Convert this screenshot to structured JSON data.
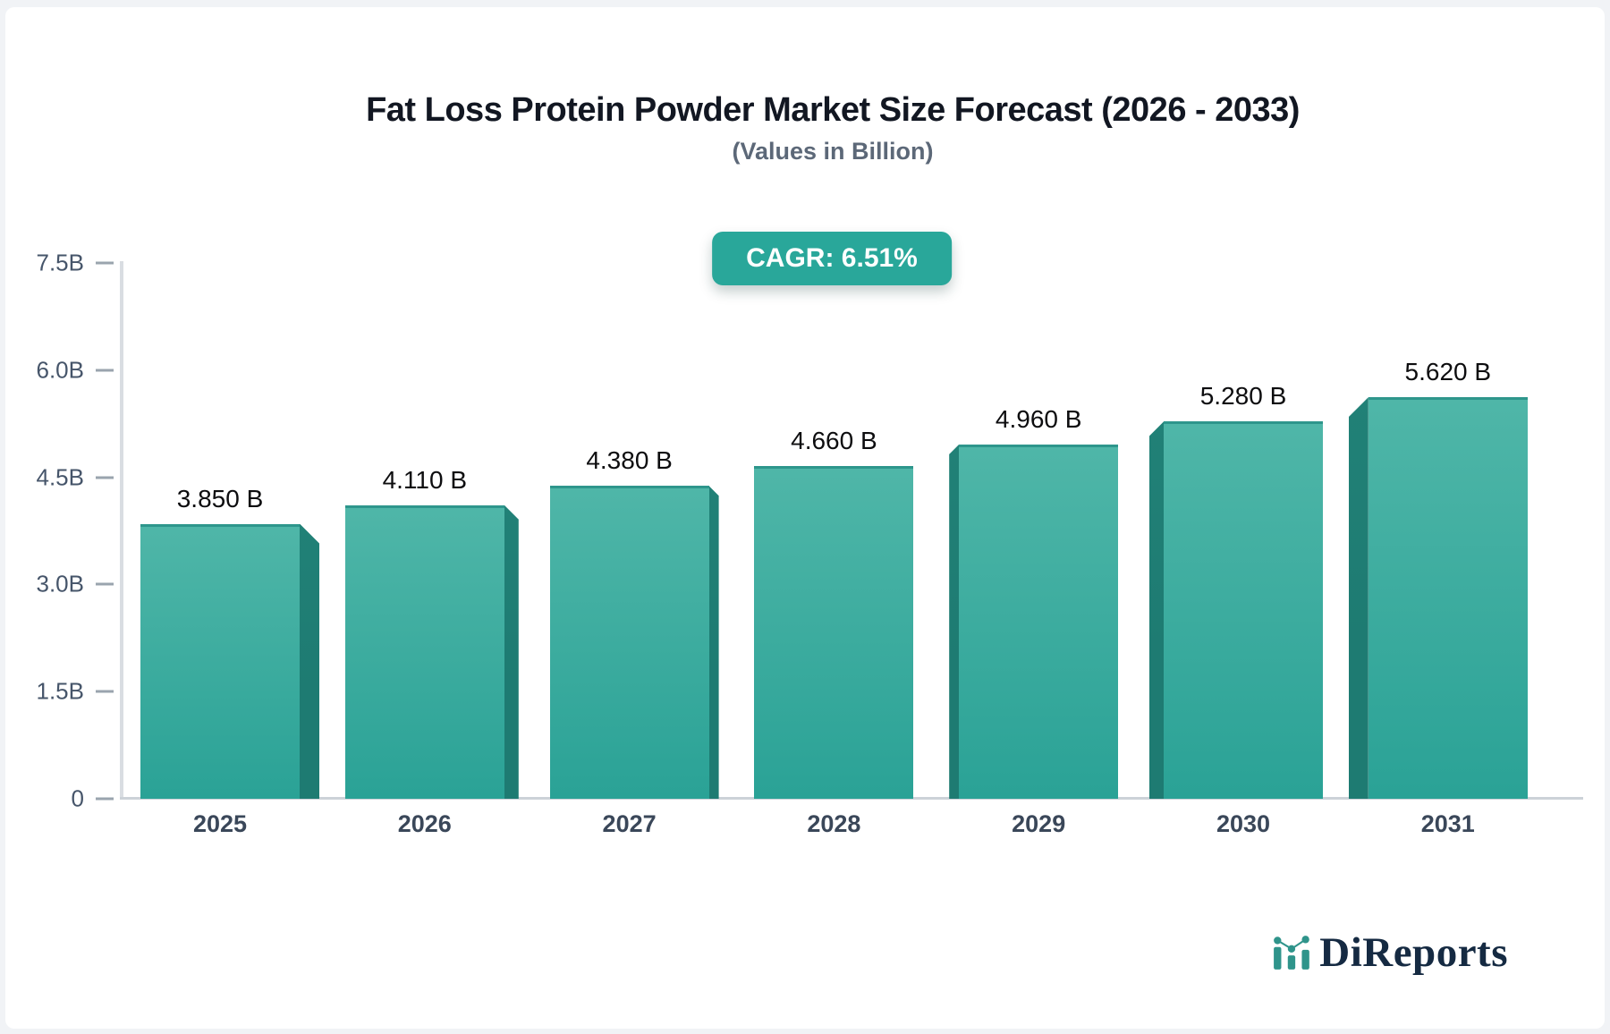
{
  "header": {
    "title": "Fat Loss Protein Powder Market Size Forecast (2026 - 2033)",
    "subtitle": "(Values in Billion)",
    "cagr_badge": "CAGR: 6.51%"
  },
  "chart_data": {
    "type": "bar",
    "title": "Fat Loss Protein Powder Market Size Forecast (2026 - 2033)",
    "subtitle": "(Values in Billion)",
    "cagr": "6.51%",
    "unit": "Billion",
    "categories": [
      "2025",
      "2026",
      "2027",
      "2028",
      "2029",
      "2030",
      "2031"
    ],
    "values": [
      3.85,
      4.11,
      4.38,
      4.66,
      4.96,
      5.28,
      5.62
    ],
    "bar_labels": [
      "3.850 B",
      "4.110 B",
      "4.380 B",
      "4.660 B",
      "4.960 B",
      "5.280 B",
      "5.620 B"
    ],
    "ylim": [
      0,
      7.5
    ],
    "y_ticks": [
      {
        "label": "7.5B",
        "value": 7.5
      },
      {
        "label": "6.0B",
        "value": 6.0
      },
      {
        "label": "4.5B",
        "value": 4.5
      },
      {
        "label": "3.0B",
        "value": 3.0
      },
      {
        "label": "1.5B",
        "value": 1.5
      },
      {
        "label": "0",
        "value": 0
      }
    ],
    "grid": false,
    "legend": false,
    "bar_style": "pseudo-3d",
    "bar_color": "#2fa79a"
  },
  "colors": {
    "bar_top": "#4fb6a8",
    "bar_bottom": "#2aa296",
    "bar_side": "#1e7b72",
    "bar_edge": "#2e968c",
    "badge_bg": "#29a79a",
    "title": "#121722",
    "subtitle": "#5c6878",
    "axis_label": "#46556a",
    "x_label": "#3a4759",
    "value_label": "#0d0d0f",
    "axis_line": "#d9dde2",
    "logo_navy": "#152a42",
    "logo_teal": "#2f948b"
  },
  "logo": {
    "text": "DiReports",
    "icon": "mini-bar-line-chart-icon"
  }
}
